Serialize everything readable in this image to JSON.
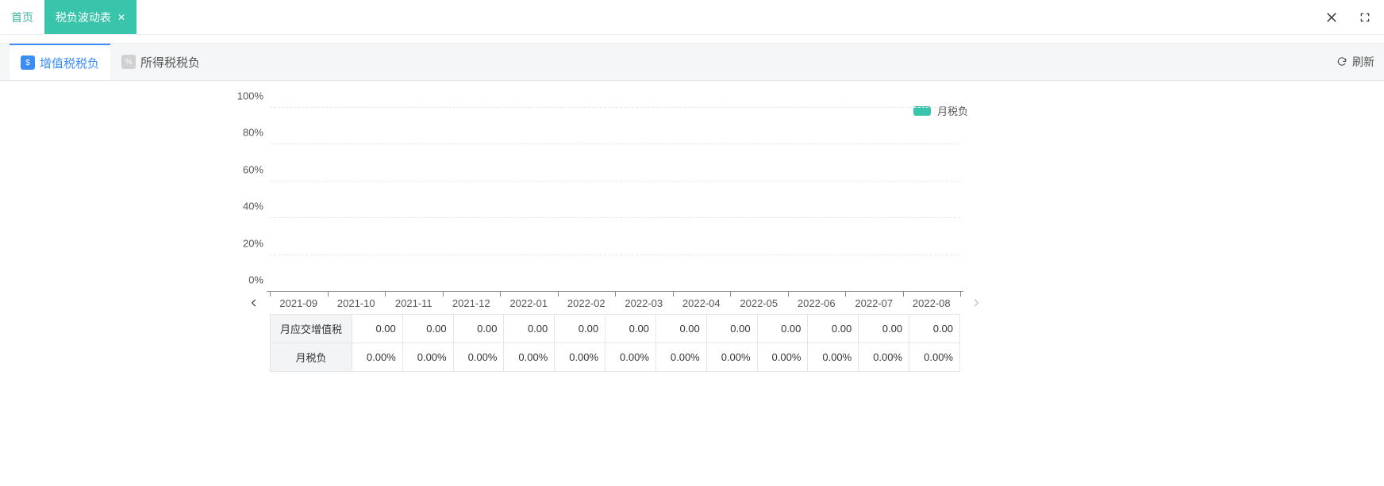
{
  "tabbar": {
    "home_label": "首页",
    "active_tab_label": "税负波动表"
  },
  "subtabs": {
    "items": [
      {
        "label": "增值税税负",
        "active": true
      },
      {
        "label": "所得税税负",
        "active": false
      }
    ],
    "refresh_label": "刷新"
  },
  "chart": {
    "type": "line",
    "legend_label": "月税负",
    "legend_color": "#39c5ab",
    "background_color": "#ffffff",
    "grid_color": "#e6e6e6",
    "ytick_labels": [
      "0%",
      "20%",
      "40%",
      "60%",
      "80%",
      "100%"
    ],
    "ytick_positions_pct": [
      0,
      20,
      40,
      60,
      80,
      100
    ],
    "categories": [
      "2021-09",
      "2021-10",
      "2021-11",
      "2021-12",
      "2022-01",
      "2022-02",
      "2022-03",
      "2022-04",
      "2022-05",
      "2022-06",
      "2022-07",
      "2022-08"
    ],
    "series": [
      {
        "name": "月税负",
        "values": [
          0,
          0,
          0,
          0,
          0,
          0,
          0,
          0,
          0,
          0,
          0,
          0
        ]
      }
    ],
    "label_fontsize": 13,
    "label_color": "#555555"
  },
  "table": {
    "row_headers": [
      "月应交增值税",
      "月税负"
    ],
    "rows": [
      [
        "0.00",
        "0.00",
        "0.00",
        "0.00",
        "0.00",
        "0.00",
        "0.00",
        "0.00",
        "0.00",
        "0.00",
        "0.00",
        "0.00"
      ],
      [
        "0.00%",
        "0.00%",
        "0.00%",
        "0.00%",
        "0.00%",
        "0.00%",
        "0.00%",
        "0.00%",
        "0.00%",
        "0.00%",
        "0.00%",
        "0.00%"
      ]
    ]
  }
}
